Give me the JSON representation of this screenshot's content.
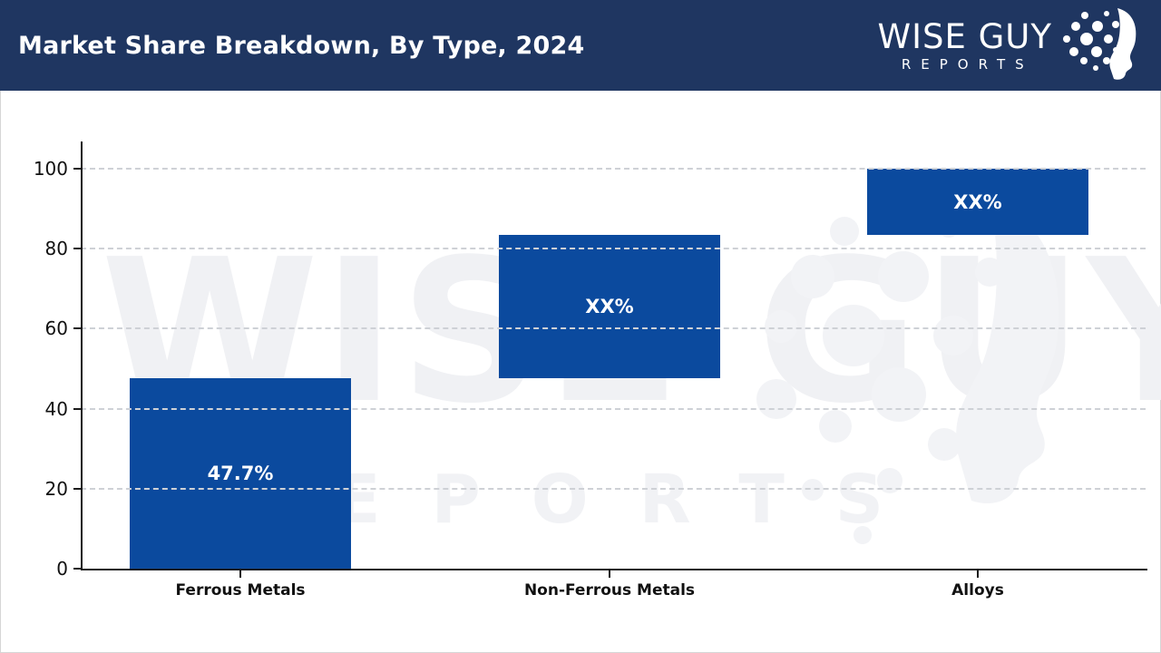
{
  "header": {
    "title": "Market Share Breakdown, By Type, 2024",
    "background_color": "#1f3661",
    "logo": {
      "line1": "WISE GUY",
      "line2": "REPORTS"
    }
  },
  "watermark": {
    "line1": "WISE GUY",
    "line2": "REPORTS"
  },
  "chart_data": {
    "type": "bar",
    "subtype": "floating-segment-waterfall",
    "title": "Market Share Breakdown, By Type, 2024",
    "categories": [
      "Ferrous Metals",
      "Non-Ferrous Metals",
      "Alloys"
    ],
    "segments": [
      {
        "category": "Ferrous Metals",
        "start": 0,
        "end": 47.7,
        "label": "47.7%"
      },
      {
        "category": "Non-Ferrous Metals",
        "start": 47.7,
        "end": 83.4,
        "label": "XX%"
      },
      {
        "category": "Alloys",
        "start": 83.4,
        "end": 100,
        "label": "XX%"
      }
    ],
    "xlabel": "",
    "ylabel": "",
    "yticks": [
      0,
      20,
      40,
      60,
      80,
      100
    ],
    "ylim": [
      0,
      107
    ],
    "grid": "horizontal-dashed",
    "legend": "none",
    "bar_color": "#0b4a9e",
    "bar_label_color": "#ffffff",
    "axis_color": "#1a1a1a",
    "gridline_color": "#ced1d6"
  }
}
